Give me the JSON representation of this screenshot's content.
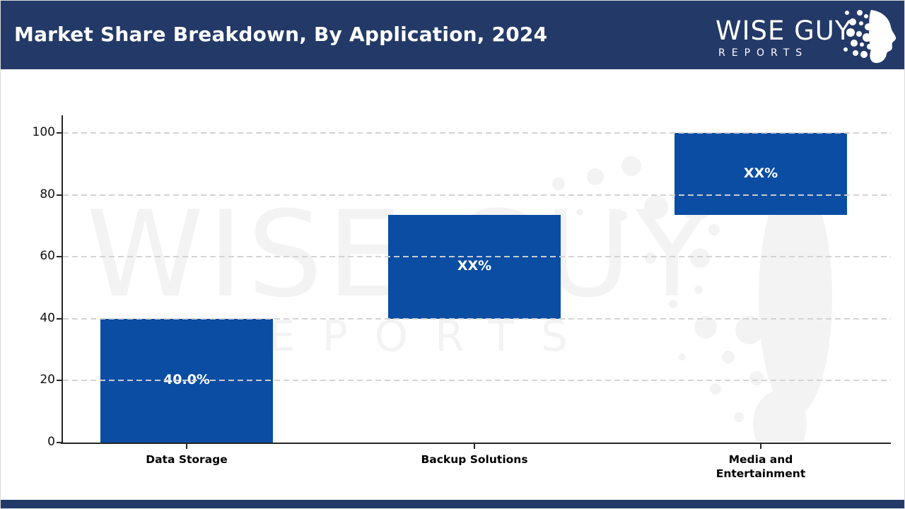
{
  "header": {
    "title": "Market Share Breakdown, By Application, 2024",
    "logo": {
      "primary": "WISE GUY",
      "secondary": "REPORTS"
    }
  },
  "watermark": {
    "primary": "WISE GUY",
    "secondary": "REPORTS"
  },
  "chart_data": {
    "type": "bar",
    "subtype": "floating-waterfall-segments",
    "title": "Market Share Breakdown, By Application, 2024",
    "categories": [
      "Data Storage",
      "Backup Solutions",
      "Media and Entertainment"
    ],
    "segments": [
      {
        "category": "Data Storage",
        "start": 0,
        "end": 40,
        "label": "40.0%"
      },
      {
        "category": "Backup Solutions",
        "start": 40,
        "end": 73.5,
        "label": "XX%"
      },
      {
        "category": "Media and Entertainment",
        "start": 73.5,
        "end": 100,
        "label": "XX%"
      }
    ],
    "xlabel": "",
    "ylabel": "",
    "yticks": [
      0,
      20,
      40,
      60,
      80,
      100
    ],
    "ylim": [
      0,
      105
    ],
    "grid": "horizontal-dashed",
    "legend": "none"
  },
  "colors": {
    "header_bg": "#233A68",
    "bar": "#0A4DA3",
    "grid": "#D2D2D2",
    "axis": "#262626",
    "title_text": "#FFFFFF",
    "bar_label_text": "#FFFFFF",
    "watermark": "#F3F3F3"
  }
}
